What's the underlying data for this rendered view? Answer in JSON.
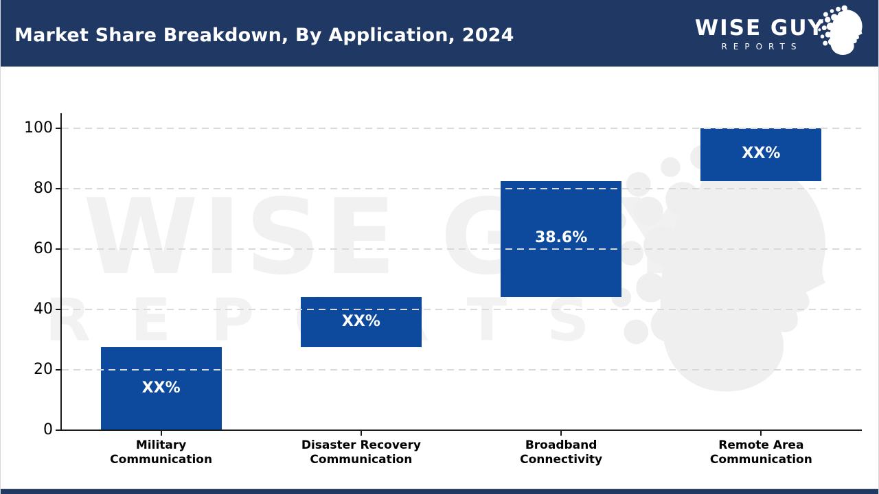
{
  "header": {
    "title": "Market Share Breakdown, By Application, 2024",
    "bg_color": "#1f3864",
    "logo": {
      "name": "WISE GUY",
      "sub": "REPORTS"
    }
  },
  "watermark": {
    "name": "WISE GUY",
    "sub": "REPORTS"
  },
  "chart_data": {
    "type": "bar",
    "subtype": "stacked-waterfall",
    "title": "Market Share Breakdown, By Application, 2024",
    "categories": [
      "Military\nCommunication",
      "Disaster Recovery\nCommunication",
      "Broadband\nConnectivity",
      "Remote Area\nCommunication"
    ],
    "segments": [
      {
        "category": "Military Communication",
        "start": 0,
        "end": 27.5,
        "label": "XX%"
      },
      {
        "category": "Disaster Recovery Communication",
        "start": 27.5,
        "end": 44.0,
        "label": "XX%"
      },
      {
        "category": "Broadband Connectivity",
        "start": 44.0,
        "end": 82.6,
        "label": "38.6%"
      },
      {
        "category": "Remote Area Communication",
        "start": 82.6,
        "end": 100,
        "label": "XX%"
      }
    ],
    "ylim": [
      0,
      100
    ],
    "yticks": [
      0,
      20,
      40,
      60,
      80,
      100
    ],
    "xlabel": "",
    "ylabel": "",
    "legend": "none",
    "grid": {
      "horizontal": true,
      "style": "dashed",
      "color": "#d9d9d9"
    },
    "bar_color": "#0d4a9e",
    "bar_label_color": "#ffffff",
    "axis_color": "#1a1a1a"
  }
}
